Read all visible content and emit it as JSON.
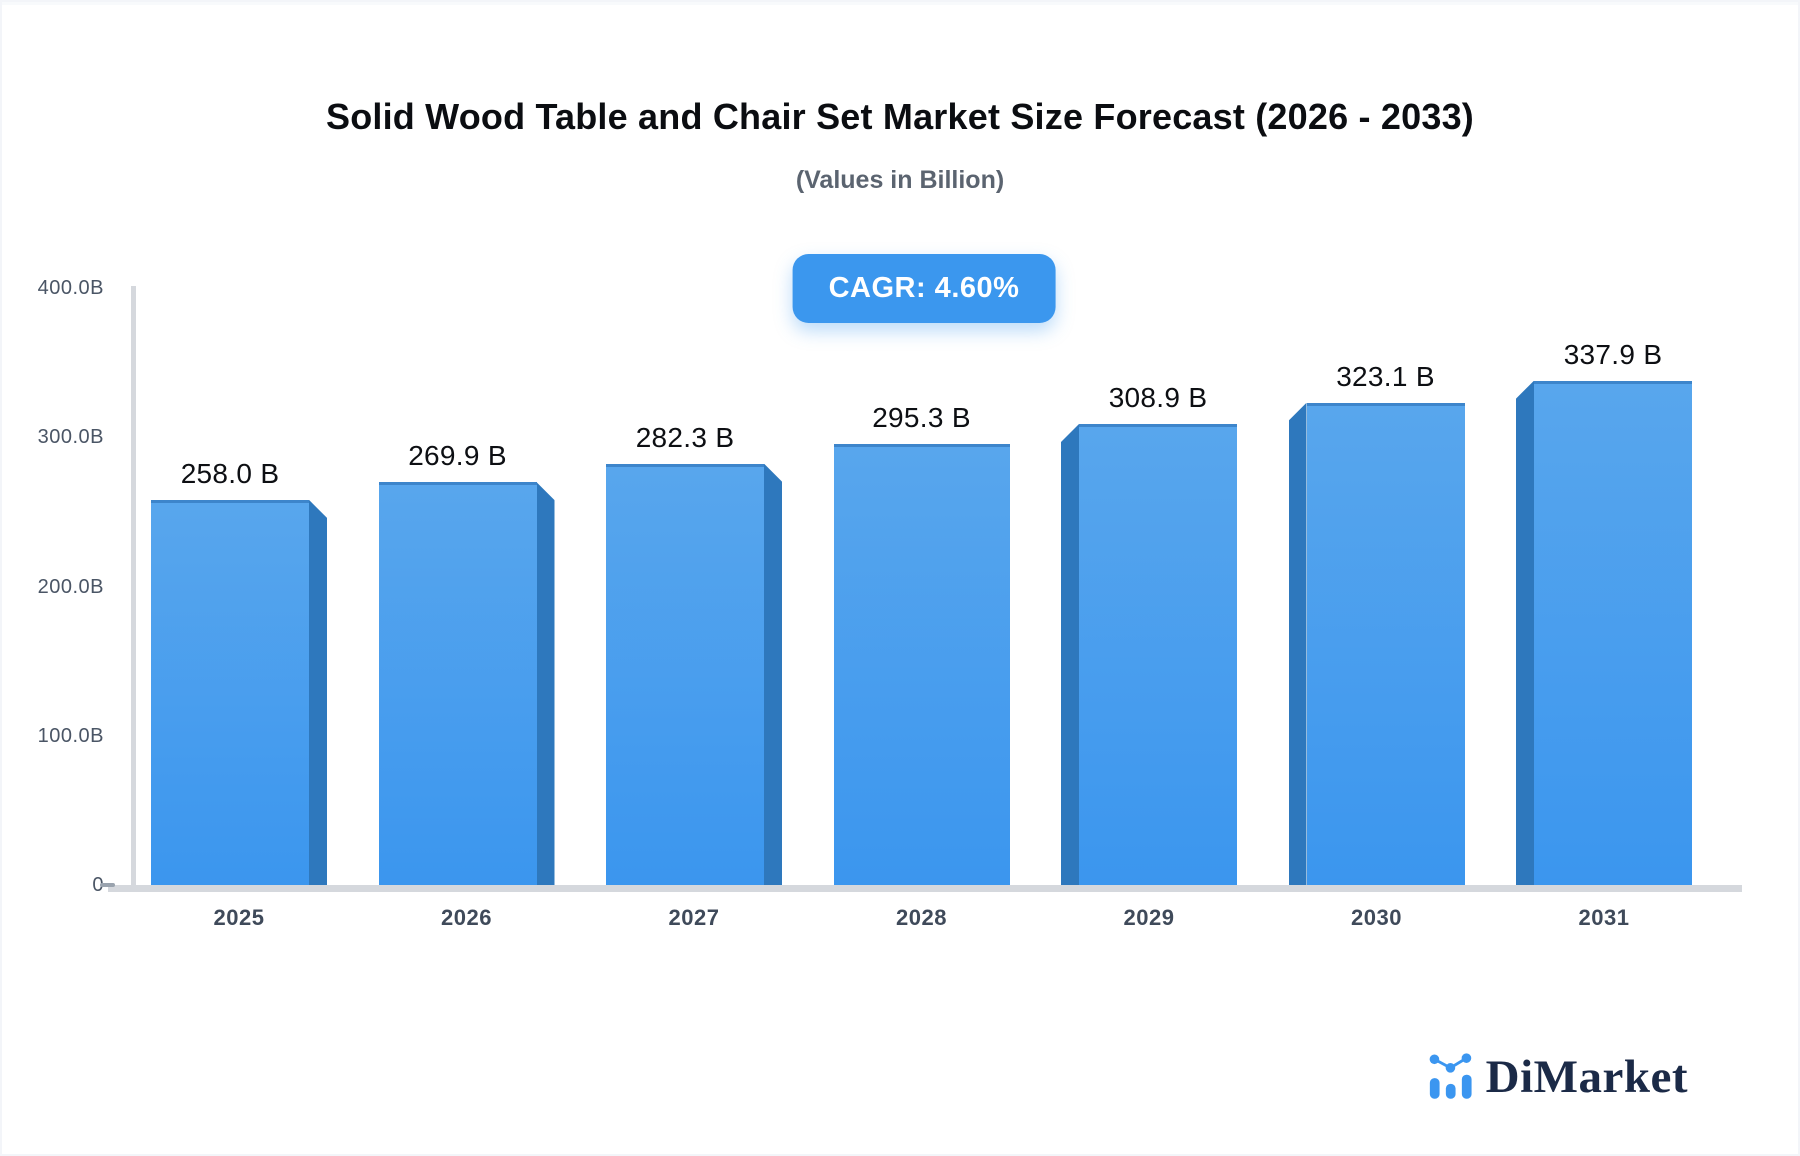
{
  "header": {
    "title": "Solid Wood Table and Chair Set Market Size Forecast (2026 - 2033)",
    "subtitle": "(Values in Billion)"
  },
  "badge": {
    "label": "CAGR: 4.60%",
    "bg": "#3b97ee",
    "text_color": "#ffffff"
  },
  "chart_data": {
    "type": "bar",
    "style": "3d-center-perspective",
    "title": "Solid Wood Table and Chair Set Market Size Forecast (2026 - 2033)",
    "subtitle": "(Values in Billion)",
    "xlabel": "",
    "ylabel": "",
    "unit": "Billion",
    "categories": [
      "2025",
      "2026",
      "2027",
      "2028",
      "2029",
      "2030",
      "2031"
    ],
    "values": [
      258.0,
      269.9,
      282.3,
      295.3,
      308.9,
      323.1,
      337.9
    ],
    "value_labels": [
      "258.0 B",
      "269.9 B",
      "282.3 B",
      "295.3 B",
      "308.9 B",
      "323.1 B",
      "337.9 B"
    ],
    "ylim": [
      0,
      400
    ],
    "y_ticks": [
      {
        "label": "400.0B",
        "value": 400
      },
      {
        "label": "300.0B",
        "value": 300
      },
      {
        "label": "200.0B",
        "value": 200
      },
      {
        "label": "100.0B",
        "value": 100
      },
      {
        "label": "0",
        "value": 0
      }
    ],
    "grid": false,
    "legend": false,
    "colors": {
      "bar_face_top": "#58a6ed",
      "bar_face_bottom": "#3b96ee",
      "bar_top_edge": "#3d85cb",
      "bar_side": "#2e78bd",
      "axis": "#d5d8dd",
      "tick_text": "#4a5565",
      "value_text": "#0d0f13",
      "category_text": "#3f4a5a"
    }
  },
  "watermark": {
    "brand": "DiMarket",
    "icon": "mini-bar-chart-icon",
    "brand_color": "#1b2a47",
    "accent_color": "#3b96f0"
  }
}
